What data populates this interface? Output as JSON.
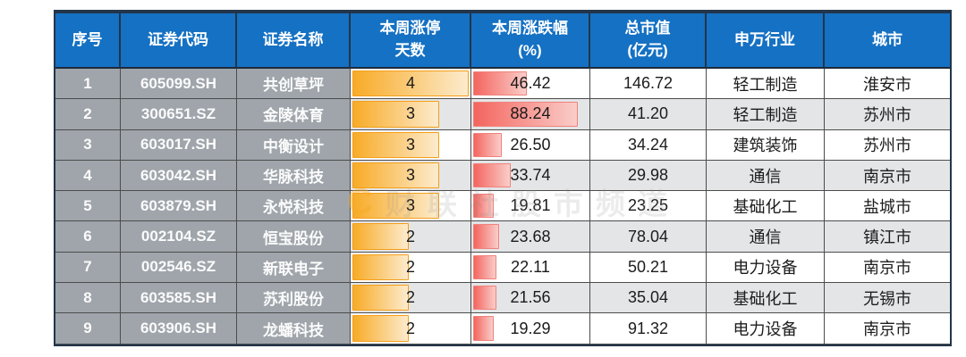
{
  "watermark": {
    "logo_text": "C",
    "text": "财联社股市频道"
  },
  "colors": {
    "header_bg": "#1571C3",
    "header_text": "#FFFFFF",
    "outer_border": "#22354A",
    "grid_line": "#4C4C4C",
    "gray_cell_bg": "#9FA5AB",
    "alt_row_bg": "#E4E5E7",
    "days_bar_start": "#F8AB27",
    "days_bar_end": "#FCEBCD",
    "days_bar_border": "#F59F18",
    "pct_bar_start": "#F4655F",
    "pct_bar_end": "#FACDC9",
    "pct_bar_border": "#F0827C"
  },
  "chart_data": {
    "type": "table",
    "title": "",
    "columns": [
      {
        "key": "rank",
        "lines": [
          "序号"
        ]
      },
      {
        "key": "code",
        "lines": [
          "证券代码"
        ]
      },
      {
        "key": "name",
        "lines": [
          "证券名称"
        ]
      },
      {
        "key": "days",
        "lines": [
          "本周涨停",
          "天数"
        ]
      },
      {
        "key": "pct",
        "lines": [
          "本周涨跌幅",
          "(%)"
        ]
      },
      {
        "key": "cap",
        "lines": [
          "总市值",
          "(亿元)"
        ]
      },
      {
        "key": "industry",
        "lines": [
          "申万行业"
        ]
      },
      {
        "key": "city",
        "lines": [
          "城市"
        ]
      }
    ],
    "rows": [
      {
        "rank": "1",
        "code": "605099.SH",
        "name": "共创草坪",
        "days": 4,
        "pct": 46.42,
        "cap": "146.72",
        "industry": "轻工制造",
        "city": "淮安市"
      },
      {
        "rank": "2",
        "code": "300651.SZ",
        "name": "金陵体育",
        "days": 3,
        "pct": 88.24,
        "cap": "41.20",
        "industry": "轻工制造",
        "city": "苏州市"
      },
      {
        "rank": "3",
        "code": "603017.SH",
        "name": "中衡设计",
        "days": 3,
        "pct": 26.5,
        "cap": "34.24",
        "industry": "建筑装饰",
        "city": "苏州市"
      },
      {
        "rank": "4",
        "code": "603042.SH",
        "name": "华脉科技",
        "days": 3,
        "pct": 33.74,
        "cap": "29.98",
        "industry": "通信",
        "city": "南京市"
      },
      {
        "rank": "5",
        "code": "603879.SH",
        "name": "永悦科技",
        "days": 3,
        "pct": 19.81,
        "cap": "23.25",
        "industry": "基础化工",
        "city": "盐城市"
      },
      {
        "rank": "6",
        "code": "002104.SZ",
        "name": "恒宝股份",
        "days": 2,
        "pct": 23.68,
        "cap": "78.04",
        "industry": "通信",
        "city": "镇江市"
      },
      {
        "rank": "7",
        "code": "002546.SZ",
        "name": "新联电子",
        "days": 2,
        "pct": 22.11,
        "cap": "50.21",
        "industry": "电力设备",
        "city": "南京市"
      },
      {
        "rank": "8",
        "code": "603585.SH",
        "name": "苏利股份",
        "days": 2,
        "pct": 21.56,
        "cap": "35.04",
        "industry": "基础化工",
        "city": "无锡市"
      },
      {
        "rank": "9",
        "code": "603906.SH",
        "name": "龙蟠科技",
        "days": 2,
        "pct": 19.29,
        "cap": "91.32",
        "industry": "电力设备",
        "city": "南京市"
      }
    ],
    "bar_scale": {
      "days_max": 4,
      "pct_max_value": 88.24,
      "pct_max_width_pct": 92
    },
    "layout_hints": {
      "days_bar_style": "orange gradient data bar, width = days/4",
      "pct_bar_style": "red gradient data bar, width = pct/88.24 * 92%",
      "row_shading": "alternate white / light gray on value columns; first 3 columns solid gray"
    }
  }
}
